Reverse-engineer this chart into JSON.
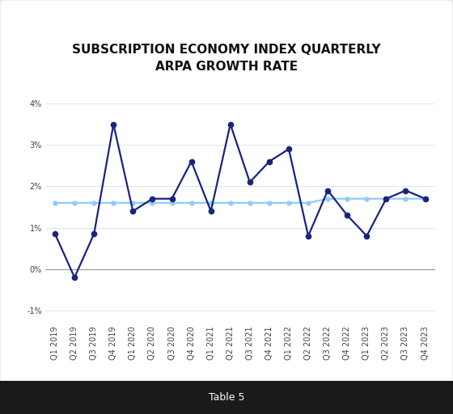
{
  "title": "SUBSCRIPTION ECONOMY INDEX QUARTERLY\nARPA GROWTH RATE",
  "categories": [
    "Q1 2019",
    "Q2 2019",
    "Q3 2019",
    "Q4 2019",
    "Q1 2020",
    "Q2 2020",
    "Q3 2020",
    "Q4 2020",
    "Q1 2021",
    "Q2 2021",
    "Q3 2021",
    "Q4 2021",
    "Q1 2022",
    "Q2 2022",
    "Q3 2022",
    "Q4 2022",
    "Q1 2023",
    "Q2 2023",
    "Q3 2023",
    "Q4 2023"
  ],
  "actual_values": [
    0.0085,
    -0.002,
    0.0085,
    0.035,
    0.014,
    0.017,
    0.017,
    0.026,
    0.014,
    0.035,
    0.021,
    0.026,
    0.029,
    0.008,
    0.019,
    0.013,
    0.008,
    0.017,
    0.019,
    0.017
  ],
  "trend_values": [
    0.016,
    0.016,
    0.016,
    0.016,
    0.016,
    0.016,
    0.016,
    0.016,
    0.016,
    0.016,
    0.016,
    0.016,
    0.016,
    0.016,
    0.017,
    0.017,
    0.017,
    0.017,
    0.017,
    0.017
  ],
  "line_color": "#1a237e",
  "trend_color": "#90caf9",
  "zero_line_color": "#9e9e9e",
  "grid_color": "#dde3ec",
  "background_color": "#f0f0f0",
  "card_color": "#ffffff",
  "footer_bg_color": "#1a1a1a",
  "footer_text_color": "#ffffff",
  "ylim": [
    -0.013,
    0.043
  ],
  "yticks": [
    -0.01,
    0.0,
    0.01,
    0.02,
    0.03,
    0.04
  ],
  "ytick_labels": [
    "-1%",
    "0%",
    "1%",
    "2%",
    "3%",
    "4%"
  ],
  "footer": "Table 5",
  "title_fontsize": 11,
  "tick_fontsize": 7,
  "footer_fontsize": 9
}
